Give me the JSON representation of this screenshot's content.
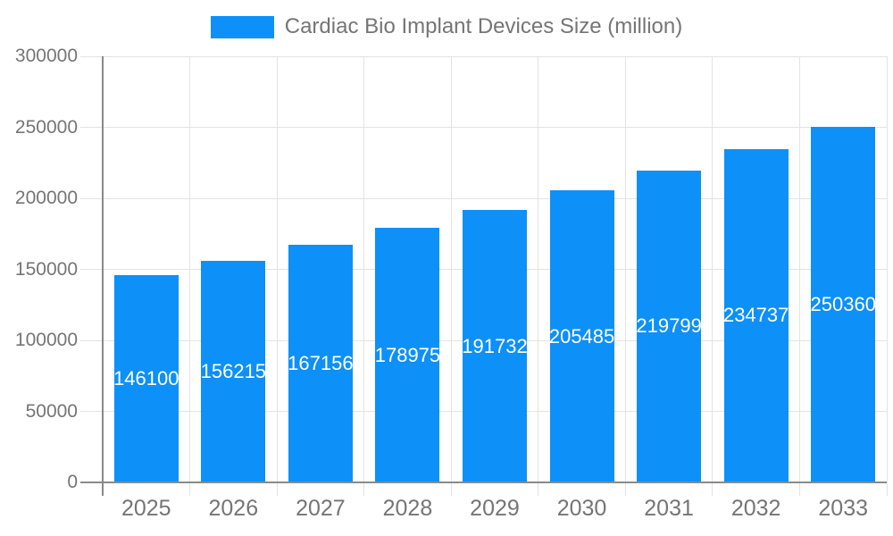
{
  "chart_data": {
    "type": "bar",
    "legend": {
      "label": "Cardiac Bio Implant Devices Size (million)",
      "position": "top-center"
    },
    "categories": [
      "2025",
      "2026",
      "2027",
      "2028",
      "2029",
      "2030",
      "2031",
      "2032",
      "2033"
    ],
    "series": [
      {
        "name": "Cardiac Bio Implant Devices Size (million)",
        "values": [
          146100,
          156215,
          167156,
          178975,
          191732,
          205485,
          219799,
          234737,
          250360
        ]
      }
    ],
    "value_labels": [
      "146100",
      "156215",
      "167156",
      "178975",
      "191732",
      "205485",
      "219799",
      "234737",
      "250360"
    ],
    "y_ticks": [
      0,
      50000,
      100000,
      150000,
      200000,
      250000,
      300000
    ],
    "y_tick_labels": [
      "0",
      "50000",
      "100000",
      "150000",
      "200000",
      "250000",
      "300000"
    ],
    "ylim": [
      0,
      300000
    ],
    "grid": true,
    "xlabel": "",
    "ylabel": "",
    "colors": {
      "bar": "#0d90f8",
      "axis_text": "#757575",
      "legend_text": "#757575",
      "gridline": "#e3e3e3",
      "axis_line": "#8a8a8a",
      "value_label": "#ffffff",
      "background": "#ffffff"
    }
  }
}
